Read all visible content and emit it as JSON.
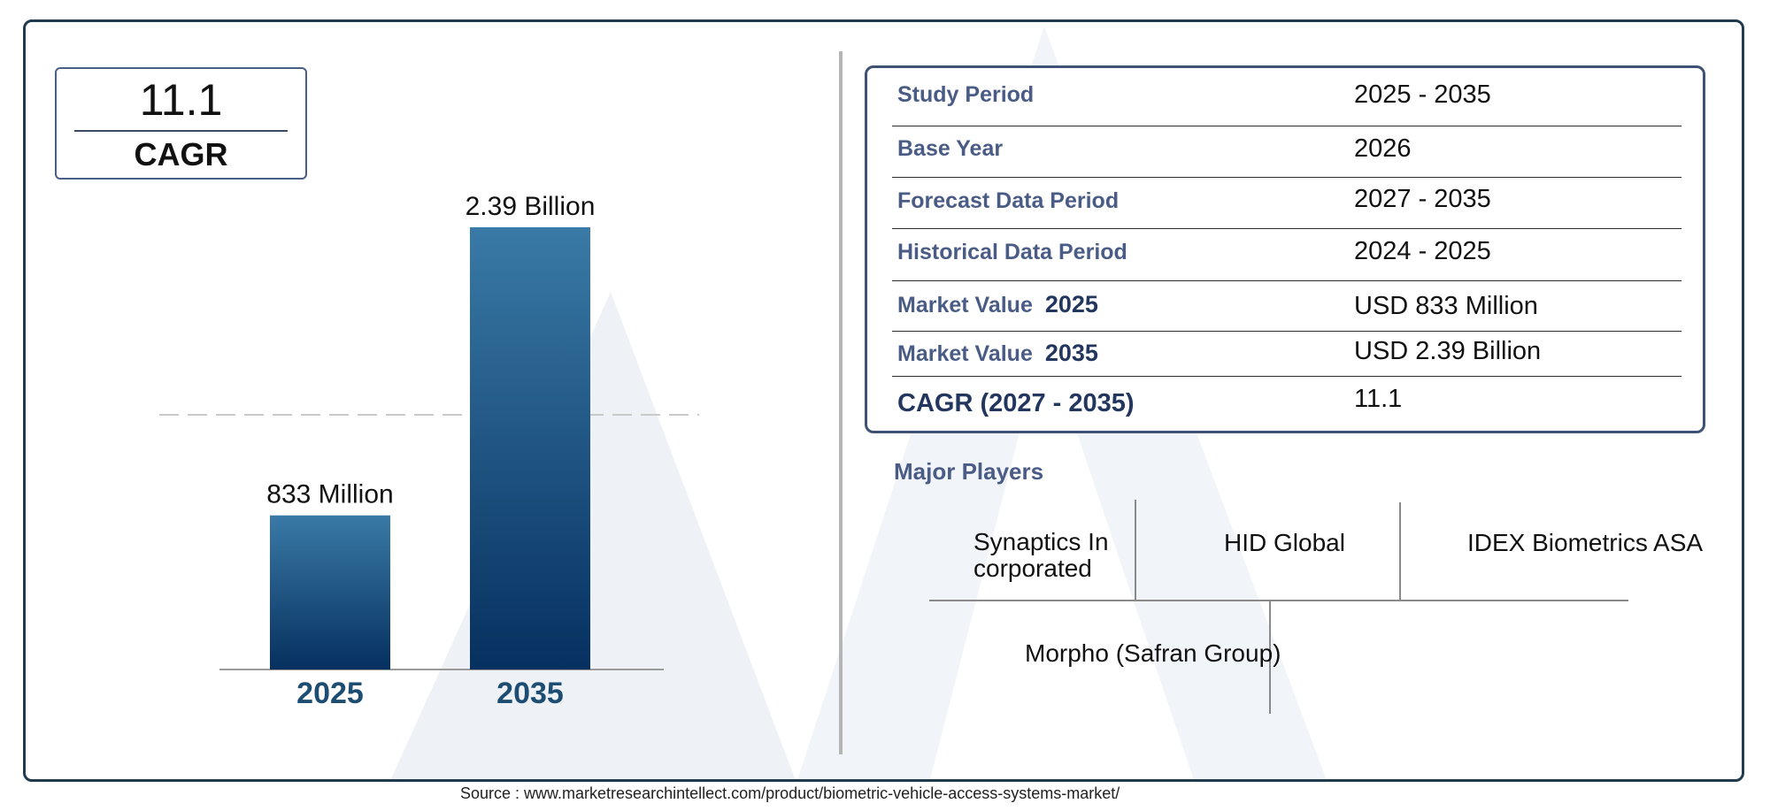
{
  "cagr_card": {
    "value": "11.1",
    "label": "CAGR"
  },
  "chart_data": {
    "type": "bar",
    "categories": [
      "2025",
      "2035"
    ],
    "values": [
      0.833,
      2.39
    ],
    "value_labels": [
      "833 Million",
      "2.39 Billion"
    ],
    "title": "",
    "xlabel": "",
    "ylabel": "",
    "ylim": [
      0,
      2.39
    ],
    "grid": false,
    "colors": {
      "bar_top": "#3a7aa6",
      "bar_bottom": "#06305f",
      "category_text": "#1e4d72"
    }
  },
  "info_table": {
    "rows": [
      {
        "label": "Study Period",
        "value": "2025 - 2035"
      },
      {
        "label": "Base Year",
        "value": "2026"
      },
      {
        "label": "Forecast Data Period",
        "value": "2027 - 2035"
      },
      {
        "label": "Historical Data Period",
        "value": "2024 - 2025"
      },
      {
        "label": "Market Value",
        "year": "2025",
        "value": "USD 833 Million"
      },
      {
        "label": "Market Value",
        "year": "2035",
        "value": "USD 2.39 Billion"
      },
      {
        "label": "CAGR (2027 - 2035)",
        "value": "11.1"
      }
    ]
  },
  "players": {
    "title": "Major Players",
    "names": [
      "Synaptics Incorporated",
      "HID Global",
      "IDEX Biometrics ASA",
      "Morpho (Safran Group)"
    ]
  },
  "source": "Source : www.marketresearchintellect.com/product/biometric-vehicle-access-systems-market/",
  "colors": {
    "frame": "#1f3b4d",
    "label": "#4a5c85",
    "dark_label": "#22365e"
  }
}
